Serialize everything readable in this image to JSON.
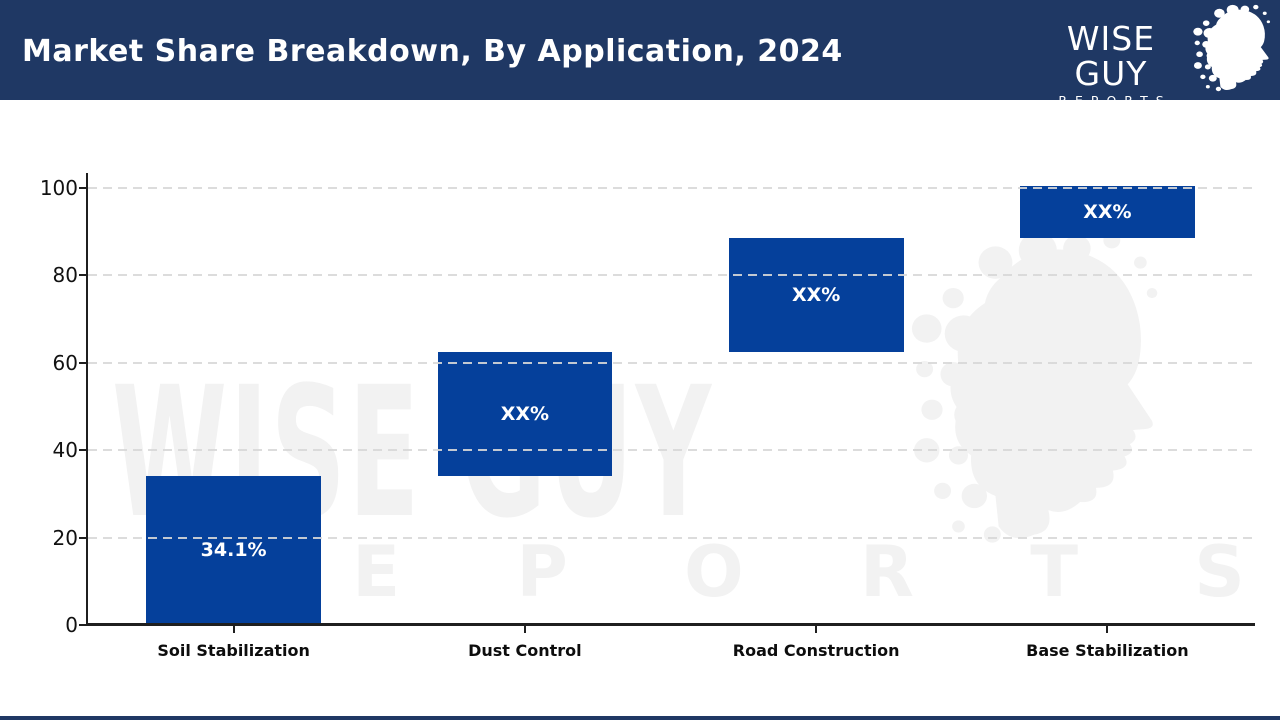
{
  "header": {
    "title": "Market Share Breakdown, By Application, 2024",
    "logo": {
      "line1": "WISE GUY",
      "line2": "REPORTS"
    }
  },
  "watermark": {
    "line1": "WISE GUY",
    "line2": "R E P O R T S"
  },
  "chart_data": {
    "type": "bar",
    "subtype": "floating-waterfall",
    "title": "Market Share Breakdown, By Application, 2024",
    "categories": [
      "Soil Stabilization",
      "Dust Control",
      "Road Construction",
      "Base Stabilization"
    ],
    "segments": [
      {
        "category": "Soil Stabilization",
        "start": 0,
        "end": 34.1,
        "label": "34.1%"
      },
      {
        "category": "Dust Control",
        "start": 34.1,
        "end": 62.5,
        "label": "XX%"
      },
      {
        "category": "Road Construction",
        "start": 62.5,
        "end": 88.6,
        "label": "XX%"
      },
      {
        "category": "Base Stabilization",
        "start": 88.6,
        "end": 100.4,
        "label": "XX%"
      }
    ],
    "yticks": [
      0,
      20,
      40,
      60,
      80,
      100
    ],
    "ylim": [
      0,
      103.5
    ],
    "xlabel": "",
    "ylabel": "",
    "grid": "horizontal-dashed",
    "legend": false,
    "bar_color": "#05409b",
    "bar_label_color": "#ffffff"
  },
  "colors": {
    "header_bg": "#1f3864",
    "footer_bg": "#1f3864",
    "title_text": "#ffffff",
    "axis": "#1f1f1f",
    "grid": "#d8d8d8",
    "tick_label": "#111111",
    "watermark": "#f2f2f2",
    "background": "#ffffff"
  }
}
